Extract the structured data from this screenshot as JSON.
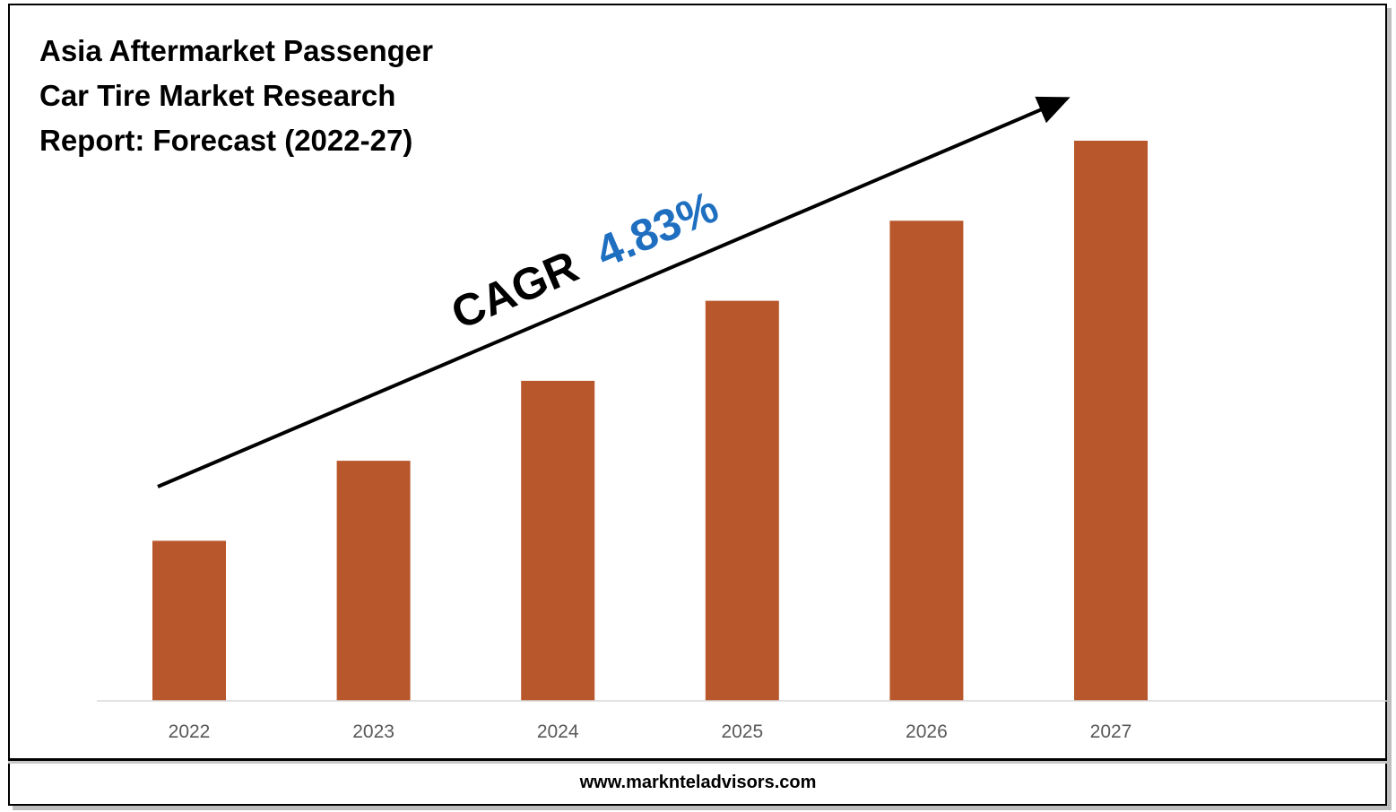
{
  "chart_data": {
    "type": "bar",
    "title_lines": [
      "Asia Aftermarket Passenger",
      "Car Tire Market Research",
      "Report: Forecast (2022-27)"
    ],
    "categories": [
      "2022",
      "2023",
      "2024",
      "2025",
      "2026",
      "2027"
    ],
    "values": [
      1.0,
      1.5,
      2.0,
      2.5,
      3.0,
      3.5
    ],
    "ylim": [
      0,
      3.6
    ],
    "xlabel": "",
    "ylabel": "",
    "grid": false,
    "annotation": {
      "label": "CAGR",
      "value": "4.83%"
    }
  },
  "footer": {
    "url": "www.marknteladvisors.com"
  },
  "colors": {
    "bar": "#b9572c",
    "cagr_value": "#1f6fc0",
    "axis": "#d9d9d9",
    "tick_label": "#595959",
    "arrow": "#000000"
  }
}
